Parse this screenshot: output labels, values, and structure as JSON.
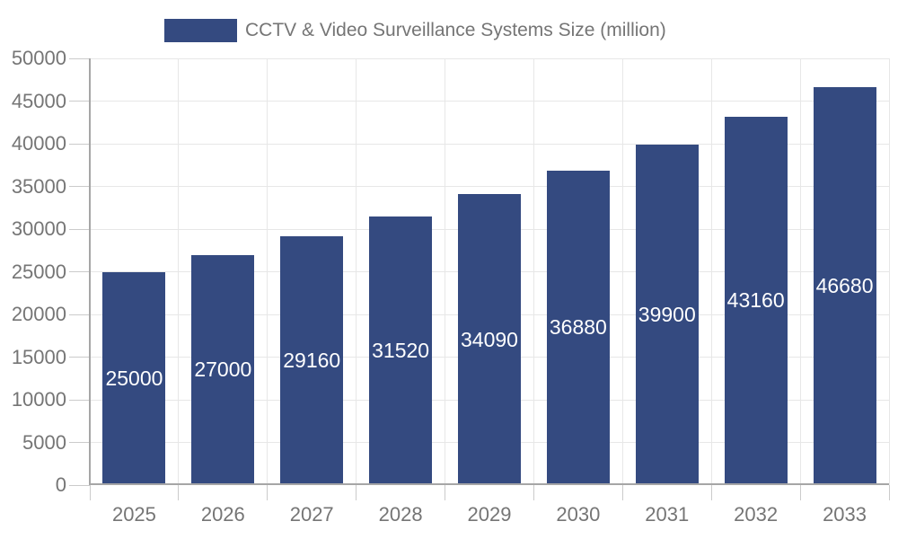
{
  "chart_data": {
    "type": "bar",
    "title": "CCTV & Video Surveillance Systems Size (million)",
    "categories": [
      "2025",
      "2026",
      "2027",
      "2028",
      "2029",
      "2030",
      "2031",
      "2032",
      "2033"
    ],
    "values": [
      25000,
      27000,
      29160,
      31520,
      34090,
      36880,
      39900,
      43160,
      46680
    ],
    "value_labels": [
      "25000",
      "27000",
      "29160",
      "31520",
      "34090",
      "36880",
      "39900",
      "43160",
      "46680"
    ],
    "xlabel": "",
    "ylabel": "",
    "ylim": [
      0,
      50000
    ],
    "yticks": [
      0,
      5000,
      10000,
      15000,
      20000,
      25000,
      30000,
      35000,
      40000,
      45000,
      50000
    ],
    "ytick_labels": [
      "0",
      "5000",
      "10000",
      "15000",
      "20000",
      "25000",
      "30000",
      "35000",
      "40000",
      "45000",
      "50000"
    ],
    "grid": true,
    "legend_position": "top",
    "colors": {
      "bar": "#344a80",
      "bar_value_text": "#ffffff",
      "axis_text": "#757575",
      "legend_text": "#757575",
      "gridline": "#e7e7e7",
      "axis_line": "#a6a6a6",
      "tick_mark": "#cbcbcb",
      "background": "#ffffff"
    }
  }
}
